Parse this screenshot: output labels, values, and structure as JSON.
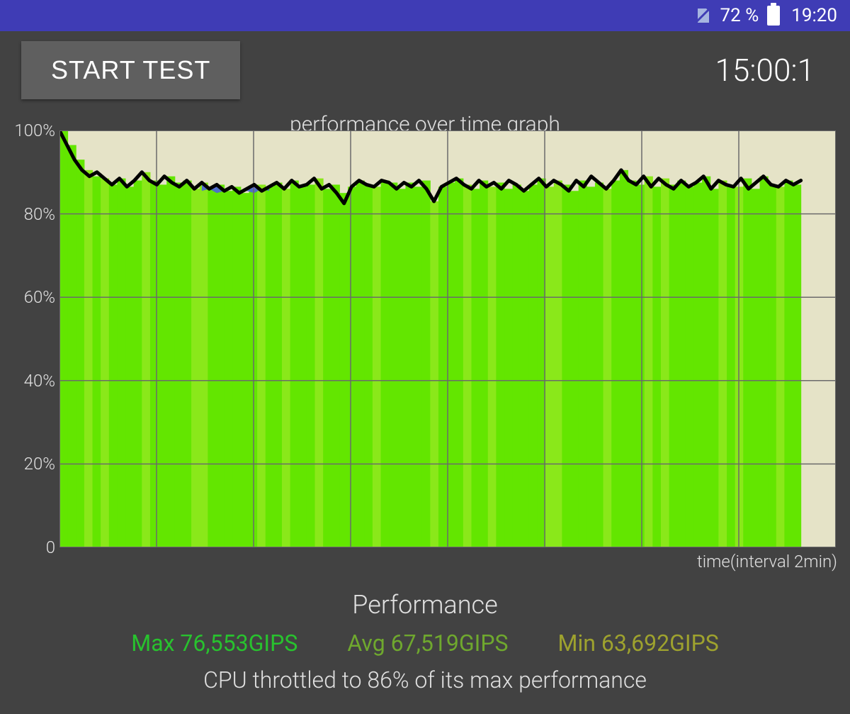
{
  "status_bar": {
    "battery_pct": "72 %",
    "time": "19:20",
    "bar_color": "#3f3cb5",
    "text_color": "#ffffff",
    "nosim_icon_fill": "#a6b5e0"
  },
  "toolbar": {
    "start_label": "START TEST",
    "timer": "15:00:1",
    "btn_bg": "#5f5f5f",
    "btn_fg": "#ffffff"
  },
  "chart": {
    "title": "performance over time graph",
    "x_caption": "time(interval 2min)",
    "type": "area-line",
    "ylim": [
      0,
      100
    ],
    "ytick_step": 20,
    "yticks": [
      "100%",
      "80%",
      "60%",
      "40%",
      "20%",
      "0"
    ],
    "x_divisions": 8,
    "plot_bg": "#e5e3c7",
    "grid_color": "#6b6b6b",
    "fill_base": "#63e600",
    "fill_alt": "#8ae81a",
    "overlay_color": "#4a5be8",
    "line_color": "#000000",
    "line_width": 5,
    "label_fontsize": 24,
    "title_fontsize": 30,
    "series": [
      100.0,
      96.5,
      93.0,
      90.5,
      89.0,
      90.0,
      88.5,
      87.0,
      88.5,
      86.5,
      88.0,
      90.0,
      88.0,
      87.0,
      89.0,
      87.5,
      86.5,
      88.0,
      86.0,
      87.5,
      86.0,
      87.0,
      85.5,
      86.5,
      85.0,
      86.0,
      87.0,
      85.5,
      86.5,
      87.5,
      86.0,
      88.0,
      86.5,
      87.0,
      88.5,
      86.0,
      87.0,
      85.0,
      82.5,
      86.5,
      88.0,
      87.0,
      86.5,
      88.0,
      87.5,
      86.0,
      87.5,
      86.5,
      88.0,
      86.0,
      83.0,
      86.5,
      87.5,
      88.5,
      87.0,
      86.0,
      88.0,
      86.5,
      87.5,
      86.0,
      88.0,
      87.0,
      85.5,
      87.0,
      88.5,
      86.5,
      88.0,
      87.0,
      85.5,
      88.0,
      86.5,
      89.0,
      87.5,
      86.0,
      88.0,
      90.5,
      88.0,
      87.0,
      89.0,
      86.5,
      88.5,
      87.0,
      86.0,
      88.0,
      86.5,
      87.5,
      89.0,
      86.0,
      88.0,
      87.0,
      86.5,
      88.5,
      86.0,
      87.5,
      89.0,
      87.0,
      86.5,
      88.0,
      87.0,
      88.0
    ],
    "overlay_series": {
      "x_range": [
        19,
        28
      ],
      "values": [
        85.5,
        86.0,
        85.0,
        85.5,
        86.0,
        85.0,
        85.5,
        85.0,
        86.0,
        85.5
      ]
    }
  },
  "footer": {
    "title": "Performance",
    "max": {
      "label": "Max 76,553GIPS",
      "color": "#28c22e"
    },
    "avg": {
      "label": "Avg 67,519GIPS",
      "color": "#6fa82e"
    },
    "min": {
      "label": "Min 63,692GIPS",
      "color": "#9ea22e"
    },
    "throttle_text": "CPU throttled to 86% of its max performance"
  },
  "page_bg": "#424242"
}
